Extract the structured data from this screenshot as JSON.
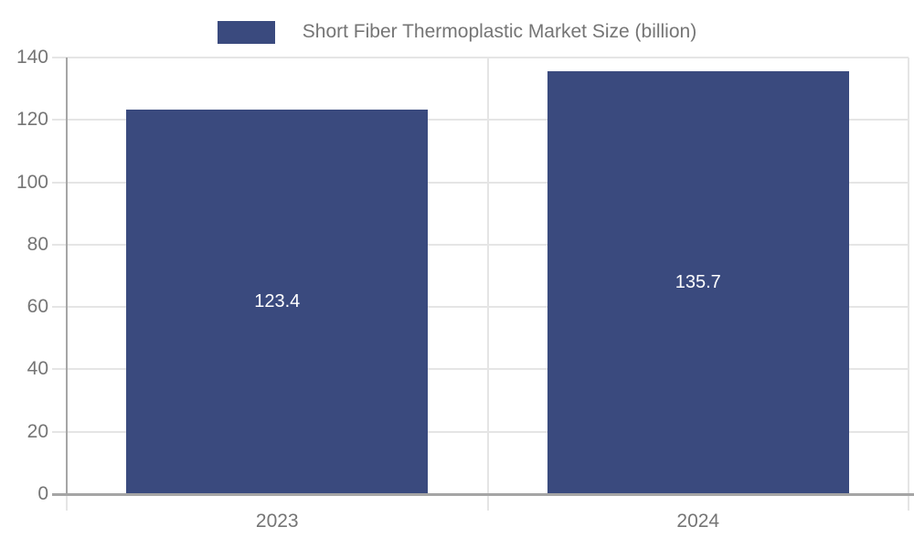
{
  "legend": {
    "label": "Short Fiber Thermoplastic Market Size (billion)"
  },
  "chart_data": {
    "type": "bar",
    "title": "Short Fiber Thermoplastic Market Size (billion)",
    "categories": [
      "2023",
      "2024"
    ],
    "series": [
      {
        "name": "Short Fiber Thermoplastic Market Size (billion)",
        "values": [
          123.4,
          135.7
        ]
      }
    ],
    "data_labels": [
      "123.4",
      "135.7"
    ],
    "xlabel": "",
    "ylabel": "",
    "ylim": [
      0,
      140
    ],
    "yticks": [
      0,
      20,
      40,
      60,
      80,
      100,
      120,
      140
    ],
    "grid": true,
    "legend_position": "top-center",
    "colors": {
      "bar": "#3A4A7E",
      "axis_line": "#a5a5a5",
      "gridline": "#e5e5e5",
      "axis_text": "#757575",
      "data_label_text": "#ffffff",
      "background": "#ffffff"
    }
  }
}
